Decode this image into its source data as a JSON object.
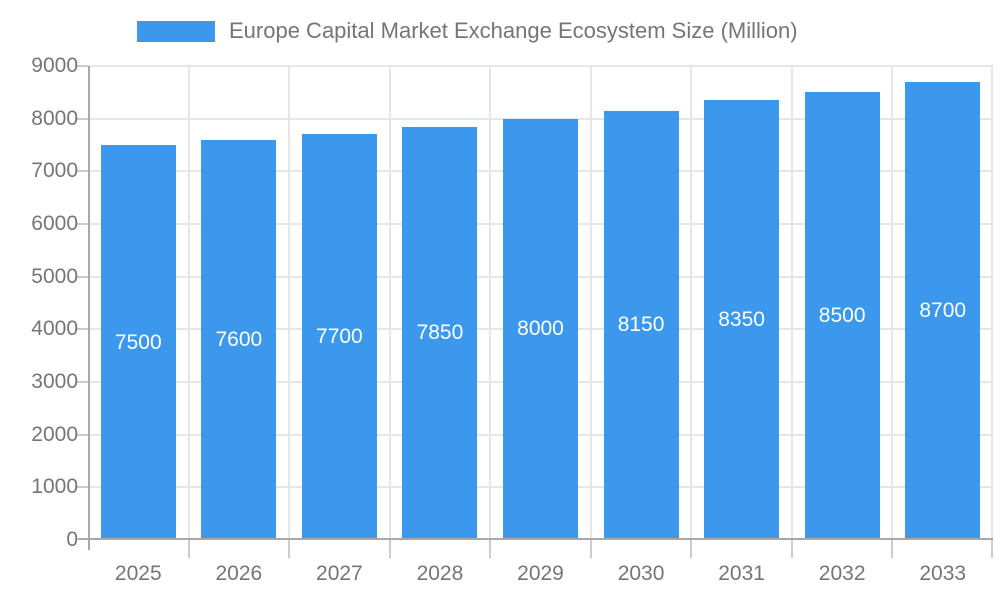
{
  "chart_data": {
    "type": "bar",
    "title": "Europe Capital Market Exchange Ecosystem Size (Million)",
    "legend": {
      "position": "top",
      "label": "Europe Capital Market Exchange Ecosystem Size (Million)"
    },
    "categories": [
      "2025",
      "2026",
      "2027",
      "2028",
      "2029",
      "2030",
      "2031",
      "2032",
      "2033"
    ],
    "series": [
      {
        "name": "Europe Capital Market Exchange Ecosystem Size (Million)",
        "values": [
          7500,
          7600,
          7700,
          7850,
          8000,
          8150,
          8350,
          8500,
          8700
        ]
      }
    ],
    "bar_labels": [
      7500,
      7600,
      7700,
      7850,
      8000,
      8150,
      8350,
      8500,
      8700
    ],
    "xlabel": "",
    "ylabel": "",
    "ylim": [
      0,
      9000
    ],
    "ytick_step": 1000,
    "ytick_labels": [
      "0",
      "1000",
      "2000",
      "3000",
      "4000",
      "5000",
      "6000",
      "7000",
      "8000",
      "9000"
    ],
    "grid": true,
    "colors": {
      "bar": "#3b98ec",
      "bar_label_text": "#ffffff",
      "axis_text": "#757575",
      "title_text": "#757575",
      "gridline": "#e6e6e6",
      "axis_line": "#a8a8a8",
      "tick": "#cccccc",
      "background": "#ffffff"
    }
  }
}
